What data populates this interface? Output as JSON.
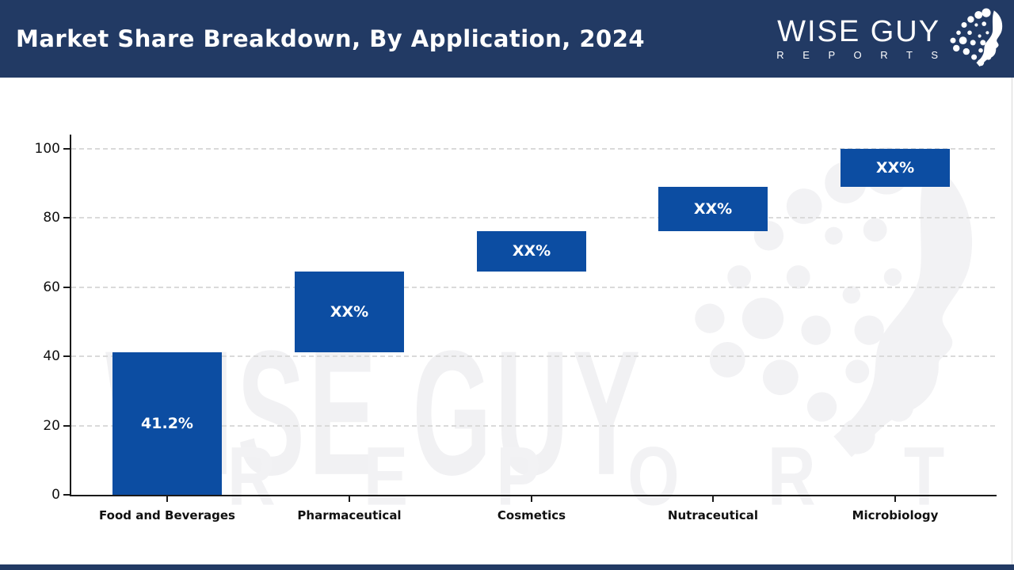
{
  "header": {
    "title": "Market Share Breakdown, By Application, 2024",
    "logo": {
      "line1": "WISE GUY",
      "line2": "R E P O R T S"
    }
  },
  "watermark": {
    "line1": "WISE GUY",
    "line2": "R E P O R T S"
  },
  "colors": {
    "header_bg": "#223A64",
    "footer_bg": "#223A64",
    "bar": "#0C4DA2",
    "bar_label": "#FFFFFF",
    "grid": "#DADADA",
    "axis": "#1A1A1A",
    "watermark": "#F1F1F3"
  },
  "chart_data": {
    "type": "bar",
    "subtype": "waterfall",
    "title": "Market Share Breakdown, By Application, 2024",
    "categories": [
      "Food and Beverages",
      "Pharmaceutical",
      "Cosmetics",
      "Nutraceutical",
      "Microbiology"
    ],
    "segments": [
      {
        "category": "Food and Beverages",
        "start": 0,
        "end": 41.2,
        "label": "41.2%"
      },
      {
        "category": "Pharmaceutical",
        "start": 41.2,
        "end": 64.5,
        "label": "XX%"
      },
      {
        "category": "Cosmetics",
        "start": 64.5,
        "end": 76.1,
        "label": "XX%"
      },
      {
        "category": "Nutraceutical",
        "start": 76.1,
        "end": 88.9,
        "label": "XX%"
      },
      {
        "category": "Microbiology",
        "start": 88.9,
        "end": 100,
        "label": "XX%"
      }
    ],
    "xlabel": "",
    "ylabel": "",
    "ylim": [
      0,
      100
    ],
    "yticks": [
      0,
      20,
      40,
      60,
      80,
      100
    ],
    "grid": "horizontal-dashed",
    "legend": "none"
  }
}
